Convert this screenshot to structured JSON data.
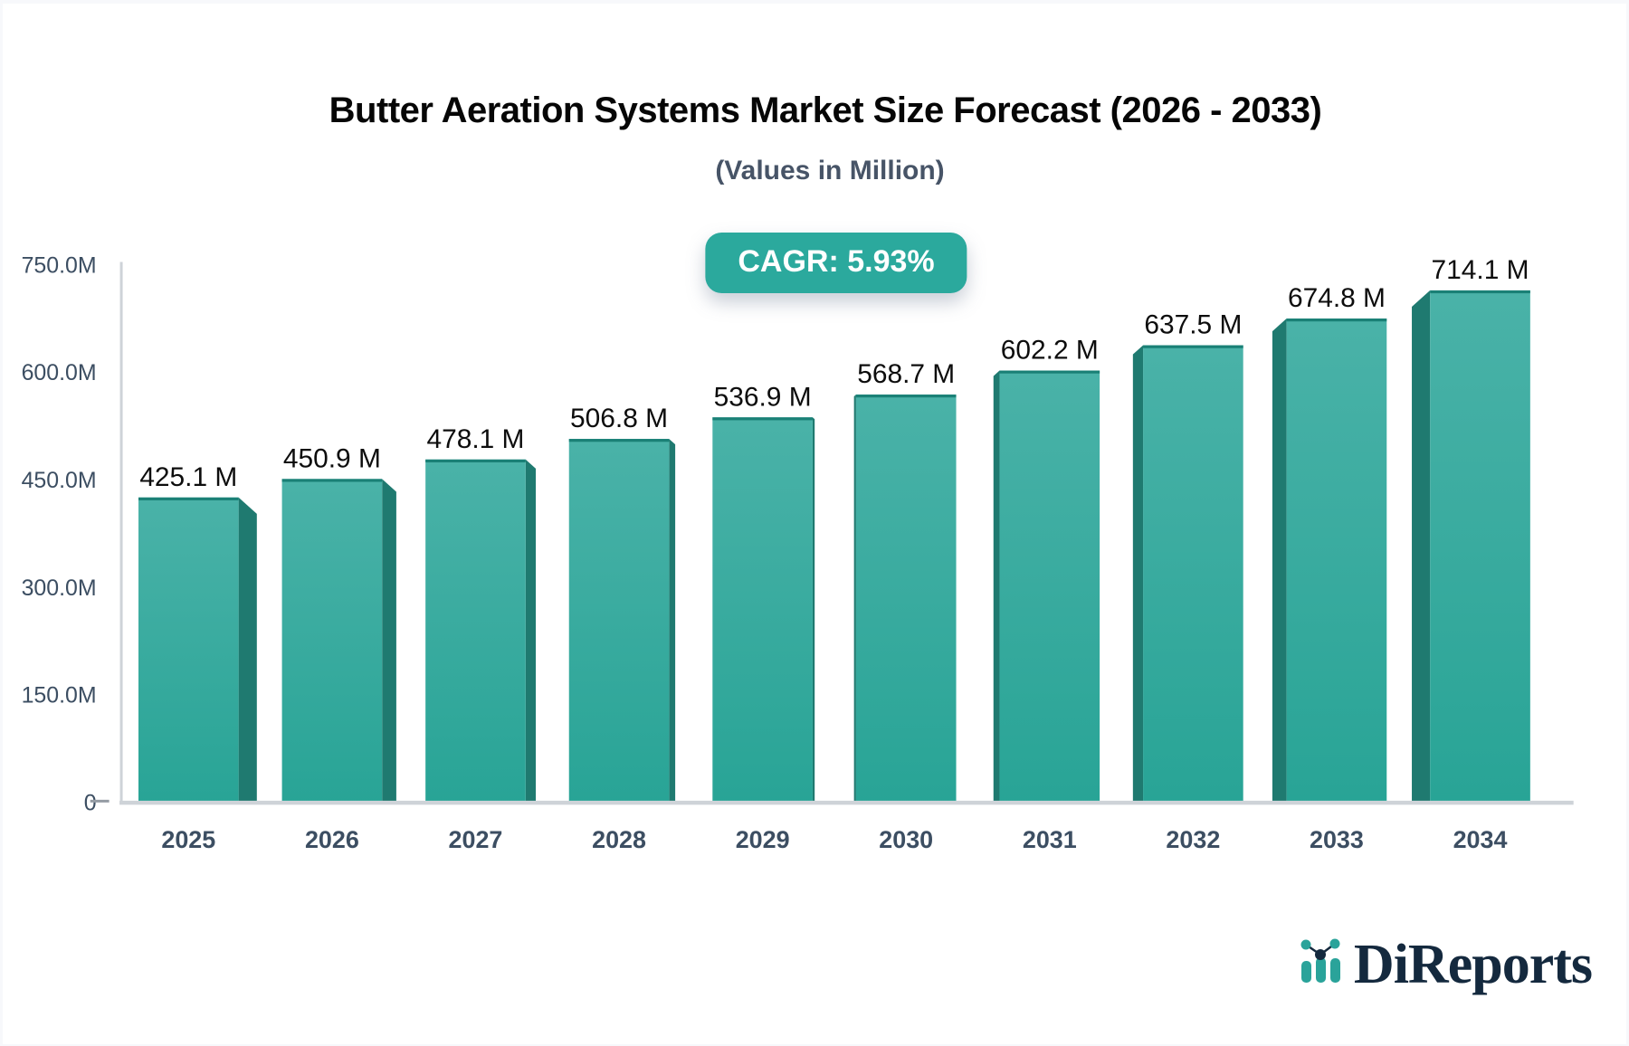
{
  "header": {
    "title": "Butter Aeration Systems Market Size Forecast (2026 - 2033)",
    "subtitle": "(Values in Million)",
    "cagr_badge": "CAGR: 5.93%"
  },
  "chart_data": {
    "type": "bar",
    "title": "Butter Aeration Systems Market Size Forecast (2026 - 2033)",
    "subtitle": "(Values in Million)",
    "cagr": "5.93%",
    "unit": "Million",
    "categories": [
      "2025",
      "2026",
      "2027",
      "2028",
      "2029",
      "2030",
      "2031",
      "2032",
      "2033",
      "2034"
    ],
    "values": [
      425.1,
      450.9,
      478.1,
      506.8,
      536.9,
      568.7,
      602.2,
      637.5,
      674.8,
      714.1
    ],
    "value_labels": [
      "425.1 M",
      "450.9 M",
      "478.1 M",
      "506.8 M",
      "536.9 M",
      "568.7 M",
      "602.2 M",
      "637.5 M",
      "674.8 M",
      "714.1 M"
    ],
    "ylim": [
      0,
      750
    ],
    "y_ticks": [
      0,
      150,
      300,
      450,
      600,
      750
    ],
    "y_tick_labels": [
      "0",
      "150.0M",
      "300.0M",
      "450.0M",
      "600.0M",
      "750.0M"
    ],
    "xlabel": "",
    "ylabel": "",
    "grid": false,
    "legend": false,
    "bar_style": "3d-perspective"
  },
  "colors": {
    "page_background": "#f7f8fb",
    "card_background": "#ffffff",
    "bar_face_top": "#4ab2a8",
    "bar_face_bottom": "#28a496",
    "bar_side": "#1f7a70",
    "bar_top_edge": "#1a8076",
    "badge_background": "#2ba99d",
    "badge_text": "#ffffff",
    "axis_line": "#ced3d8",
    "zero_tick": "#959ca4",
    "axis_label": "#3c4e62",
    "value_label": "#0d0d0d",
    "title": "#060606",
    "subtitle": "#475467",
    "logo_navy": "#14293e",
    "logo_teal": "#2aa39a"
  },
  "logo": {
    "text": "DiReports",
    "icon": "mini-bar-chart-icon"
  }
}
